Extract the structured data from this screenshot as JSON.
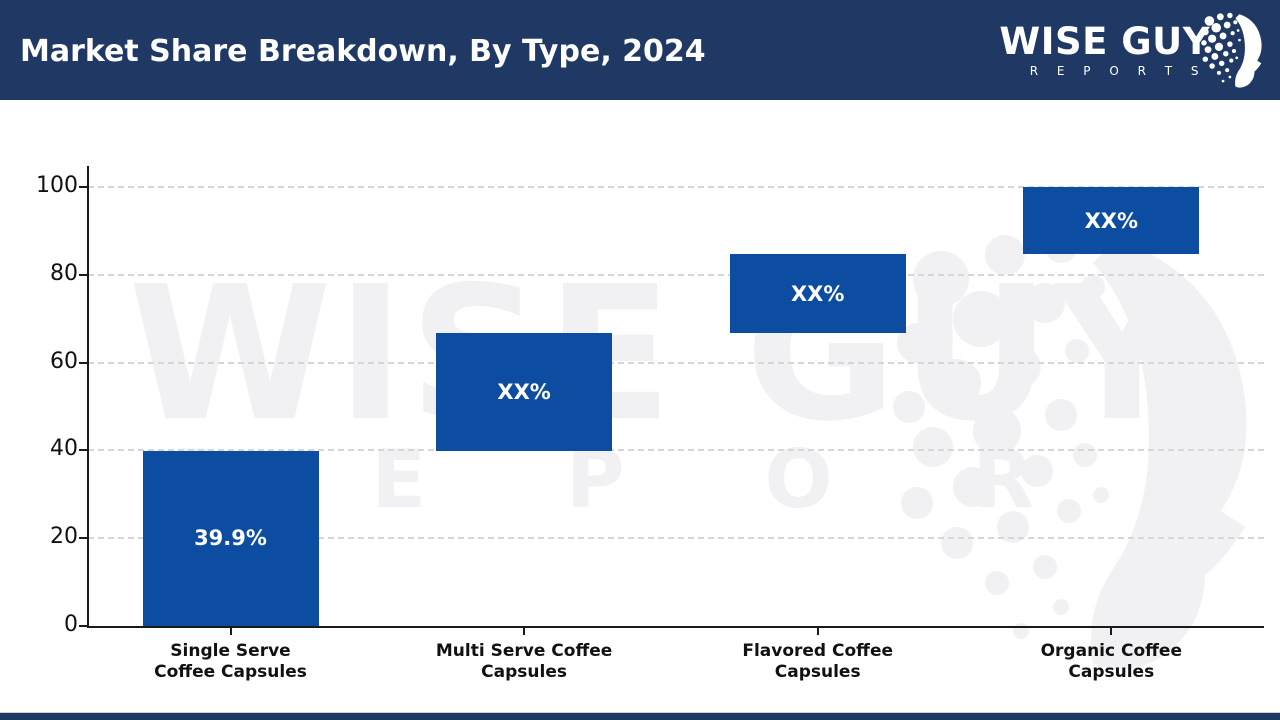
{
  "header": {
    "title": "Market Share Breakdown, By Type, 2024",
    "logo": {
      "wordmark": "WISE GUY",
      "subtext": "R E P O R T S"
    }
  },
  "watermark": {
    "wordmark": "WISE GUY",
    "subtext": "R E P O R T S"
  },
  "chart_data": {
    "type": "bar",
    "variant": "floating_waterfall",
    "title": "Market Share Breakdown, By Type, 2024",
    "categories": [
      "Single Serve Coffee Capsules",
      "Multi Serve Coffee Capsules",
      "Flavored Coffee Capsules",
      "Organic Coffee Capsules"
    ],
    "category_lines": [
      [
        "Single Serve",
        "Coffee Capsules"
      ],
      [
        "Multi Serve Coffee",
        "Capsules"
      ],
      [
        "Flavored Coffee",
        "Capsules"
      ],
      [
        "Organic Coffee",
        "Capsules"
      ]
    ],
    "segments": [
      {
        "category": "Single Serve Coffee Capsules",
        "start": 0,
        "end": 39.9,
        "value": 39.9,
        "label": "39.9%"
      },
      {
        "category": "Multi Serve Coffee Capsules",
        "start": 39.9,
        "end": 66.7,
        "value": 26.8,
        "label": "XX%"
      },
      {
        "category": "Flavored Coffee Capsules",
        "start": 66.7,
        "end": 84.7,
        "value": 18.0,
        "label": "XX%"
      },
      {
        "category": "Organic Coffee Capsules",
        "start": 84.7,
        "end": 100,
        "value": 15.3,
        "label": "XX%"
      }
    ],
    "xlabel": "",
    "ylabel": "",
    "ylim": [
      0,
      100
    ],
    "yticks": [
      0,
      20,
      40,
      60,
      80,
      100
    ],
    "grid": "horizontal dashed",
    "legend": "none"
  },
  "colors": {
    "header_bg": "#1f3864",
    "footer_bg": "#1f3864",
    "bar": "#0d4da1",
    "bar_label": "#ffffff",
    "gridline": "#d6d6d6",
    "axis": "#1a1a1a",
    "watermark": "#f1f1f3"
  }
}
